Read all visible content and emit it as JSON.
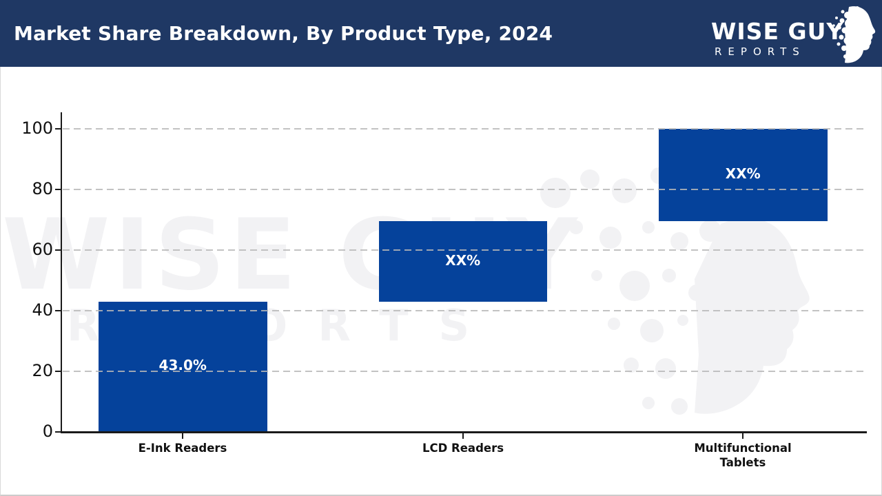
{
  "header": {
    "title": "Market Share Breakdown, By Product Type, 2024",
    "logo": {
      "wordmark": "WISE GUY",
      "subline": "REPORTS"
    }
  },
  "watermark": {
    "wordmark": "WISE GUY",
    "subline": "REPORTS"
  },
  "theme": {
    "header_bg": "#1f3864",
    "bar_color": "#05429b",
    "bar_label_color": "#ffffff",
    "watermark_color": "#f2f2f4",
    "axis_color": "#1a1a1a",
    "gridline_color": "#b8b8b8"
  },
  "chart_data": {
    "type": "bar",
    "variant": "waterfall",
    "title": "Market Share Breakdown, By Product Type, 2024",
    "categories": [
      "E-Ink Readers",
      "LCD Readers",
      "Multifunctional Tablets"
    ],
    "segments": [
      {
        "category": "E-Ink Readers",
        "start": 0,
        "end": 43.0,
        "label": "43.0%"
      },
      {
        "category": "LCD Readers",
        "start": 43.0,
        "end": 69.5,
        "label": "XX%"
      },
      {
        "category": "Multifunctional Tablets",
        "start": 69.5,
        "end": 100.0,
        "label": "XX%"
      }
    ],
    "yticks": [
      0,
      20,
      40,
      60,
      80,
      100
    ],
    "ylim": [
      0,
      105
    ],
    "xlabel": "",
    "ylabel": "",
    "grid": "horizontal-dashed-over-bars",
    "legend": "none"
  }
}
